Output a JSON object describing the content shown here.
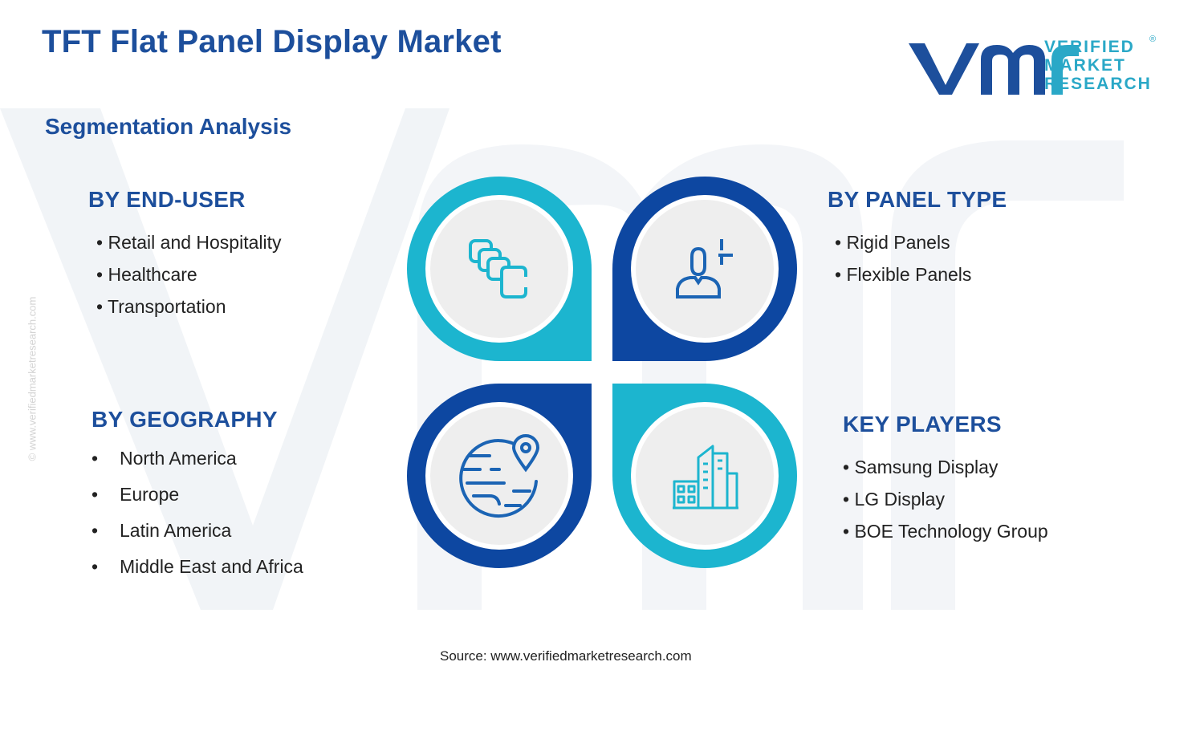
{
  "header": {
    "title": "TFT Flat Panel Display Market",
    "subtitle": "Segmentation Analysis"
  },
  "logo": {
    "line1": "VERIFIED",
    "line2": "MARKET",
    "line3": "RESEARCH",
    "registered": "®"
  },
  "side_url": "© www.verifiedmarketresearch.com",
  "segments": {
    "end_user": {
      "title": "BY END-USER",
      "items": [
        "Retail and Hospitality",
        "Healthcare",
        "Transportation"
      ]
    },
    "panel_type": {
      "title": "BY PANEL TYPE",
      "items": [
        "Rigid Panels",
        "Flexible Panels"
      ]
    },
    "geography": {
      "title": "BY GEOGRAPHY",
      "items": [
        "North America",
        "Europe",
        "Latin America",
        "Middle East and Africa"
      ]
    },
    "key_players": {
      "title": "KEY PLAYERS",
      "items": [
        "Samsung Display",
        "LG Display",
        "BOE Technology Group"
      ]
    }
  },
  "bullet": "•",
  "icons": {
    "end_user": "stacked-squares-icon",
    "panel_type": "user-cursor-icon",
    "geography": "globe-location-icon",
    "key_players": "city-buildings-icon"
  },
  "colors": {
    "navy": "#1d4f9c",
    "dark_blue": "#0d47a1",
    "cyan": "#1cb5cf",
    "icon_blue": "#1b64b4",
    "icon_cyan": "#1cb5cf",
    "circle_fill": "#eeeeee"
  },
  "source": "Source: www.verifiedmarketresearch.com"
}
